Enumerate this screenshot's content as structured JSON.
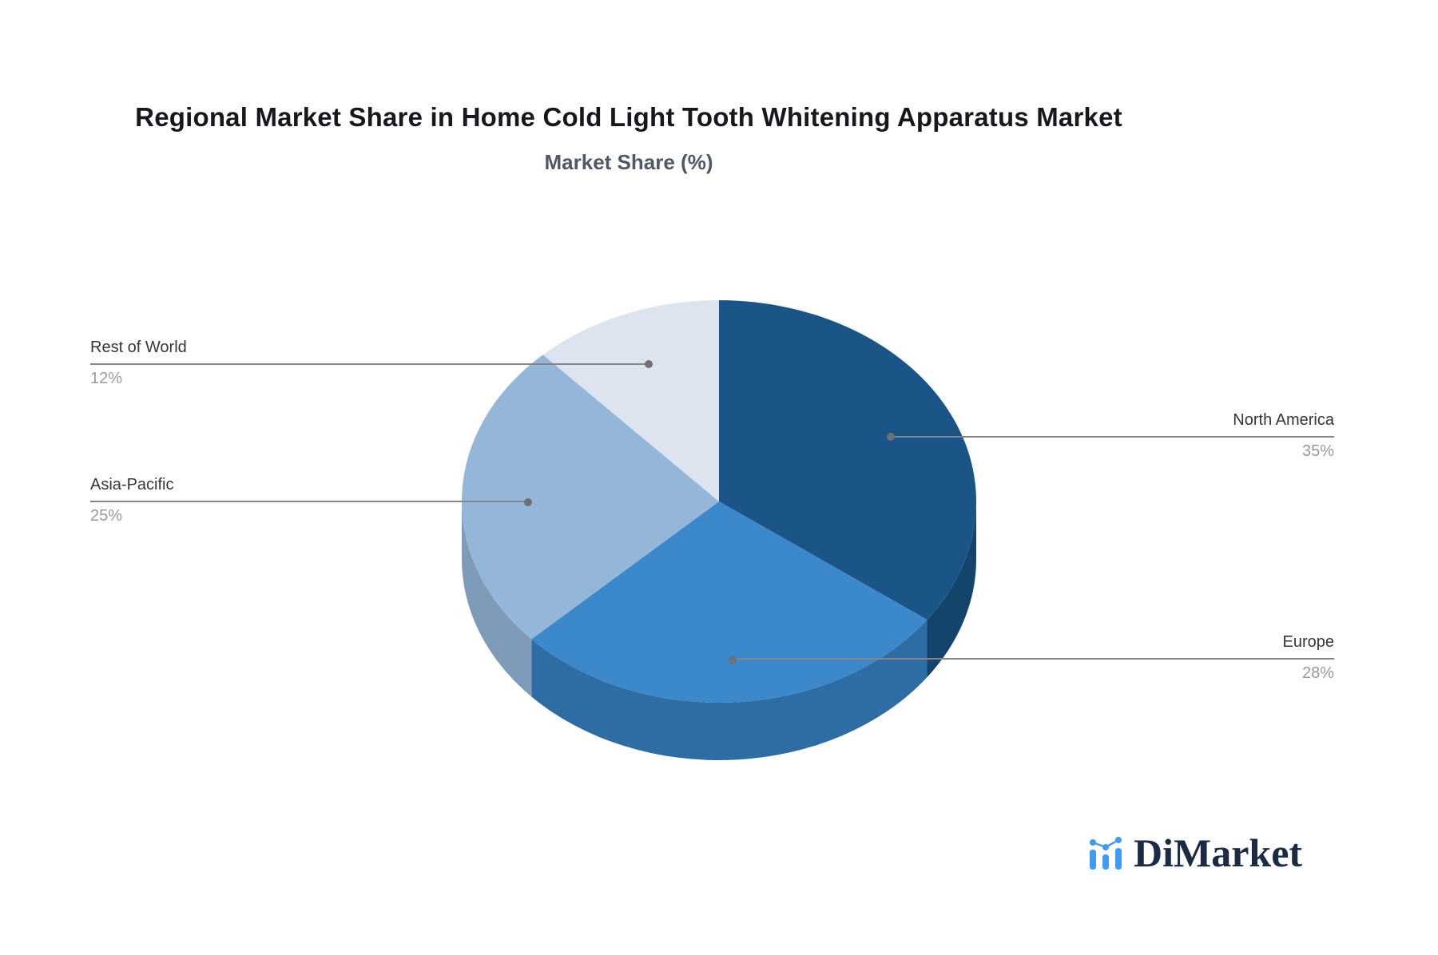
{
  "chart_data": {
    "type": "pie",
    "style": "3d-pie",
    "title": "Regional Market Share in Home Cold Light Tooth Whitening Apparatus Market",
    "subtitle": "Market Share (%)",
    "unit": "%",
    "categories": [
      "North America",
      "Europe",
      "Asia-Pacific",
      "Rest of World"
    ],
    "values": [
      35,
      28,
      25,
      12
    ],
    "start_angle": "12-o-clock",
    "direction": "clockwise",
    "legend": "none",
    "slice_colors": [
      "#1b5587",
      "#3b88ca",
      "#94b6d8",
      "#dde4ef"
    ],
    "slice_side_colors": [
      "#15446b",
      "#2e6da4",
      "#7e9cba",
      "#c5cfdd"
    ],
    "labels": [
      {
        "name": "North America",
        "pct_text": "35%"
      },
      {
        "name": "Europe",
        "pct_text": "28%"
      },
      {
        "name": "Asia-Pacific",
        "pct_text": "25%"
      },
      {
        "name": "Rest of World",
        "pct_text": "12%"
      }
    ]
  },
  "callout_colors": {
    "line": "#848689",
    "dot": "#6e7072",
    "name_text": "#333639",
    "pct_text": "#98999b"
  },
  "logo": {
    "text": "DiMarket",
    "icon": "bar-chart-logo-icon",
    "icon_color": "#3f9cf5",
    "text_color": "#1c2b44"
  }
}
